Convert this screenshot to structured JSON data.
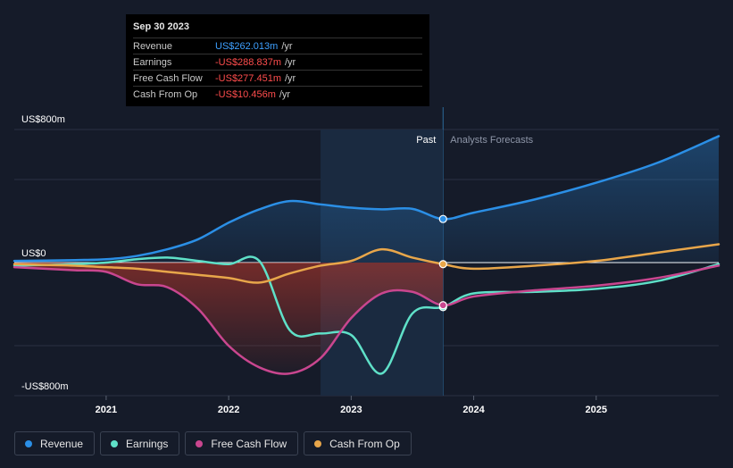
{
  "tooltip": {
    "date": "Sep 30 2023",
    "rows": [
      {
        "label": "Revenue",
        "value": "US$262.013m",
        "unit": "/yr",
        "color": "#3ea0ff"
      },
      {
        "label": "Earnings",
        "value": "-US$288.837m",
        "unit": "/yr",
        "color": "#ff4d4d"
      },
      {
        "label": "Free Cash Flow",
        "value": "-US$277.451m",
        "unit": "/yr",
        "color": "#ff4d4d"
      },
      {
        "label": "Cash From Op",
        "value": "-US$10.456m",
        "unit": "/yr",
        "color": "#ff4d4d"
      }
    ]
  },
  "labels": {
    "past": "Past",
    "forecast": "Analysts Forecasts"
  },
  "chart_data": {
    "type": "line",
    "ylim": [
      -800,
      800
    ],
    "xlim": [
      2020.0,
      2026.0
    ],
    "y_ticks": [
      {
        "value": 800,
        "label": "US$800m"
      },
      {
        "value": 0,
        "label": "US$0"
      },
      {
        "value": -800,
        "label": "-US$800m"
      }
    ],
    "x_ticks": [
      {
        "value": 2021,
        "label": "2021"
      },
      {
        "value": 2022,
        "label": "2022"
      },
      {
        "value": 2023,
        "label": "2023"
      },
      {
        "value": 2024,
        "label": "2024"
      },
      {
        "value": 2025,
        "label": "2025"
      }
    ],
    "past_end": 2023.75,
    "highlight_start": 2022.75,
    "series": [
      {
        "name": "Revenue",
        "color": "#2b8fe6",
        "x": [
          2020.25,
          2020.5,
          2020.75,
          2021.0,
          2021.25,
          2021.5,
          2021.75,
          2022.0,
          2022.25,
          2022.5,
          2022.75,
          2023.0,
          2023.25,
          2023.5,
          2023.75,
          2024.0,
          2024.5,
          2025.0,
          2025.5,
          2026.0
        ],
        "y": [
          10,
          12,
          15,
          20,
          40,
          80,
          140,
          240,
          320,
          370,
          350,
          330,
          320,
          323,
          262,
          300,
          380,
          480,
          600,
          760
        ]
      },
      {
        "name": "Earnings",
        "color": "#5fe0c8",
        "x": [
          2020.25,
          2020.5,
          2020.75,
          2021.0,
          2021.25,
          2021.5,
          2021.75,
          2022.0,
          2022.25,
          2022.5,
          2022.75,
          2023.0,
          2023.25,
          2023.5,
          2023.75,
          2024.0,
          2024.5,
          2025.0,
          2025.5,
          2026.0
        ],
        "y": [
          -20,
          -15,
          -10,
          0,
          20,
          30,
          10,
          -10,
          10,
          -440,
          -460,
          -470,
          -720,
          -330,
          -289,
          -200,
          -190,
          -170,
          -120,
          -10
        ]
      },
      {
        "name": "Free Cash Flow",
        "color": "#c9468f",
        "x": [
          2020.25,
          2020.5,
          2020.75,
          2021.0,
          2021.25,
          2021.5,
          2021.75,
          2022.0,
          2022.25,
          2022.5,
          2022.75,
          2023.0,
          2023.25,
          2023.5,
          2023.75,
          2024.0,
          2024.5,
          2025.0,
          2025.5,
          2026.0
        ],
        "y": [
          -30,
          -40,
          -50,
          -60,
          -140,
          -160,
          -300,
          -540,
          -680,
          -720,
          -620,
          -360,
          -200,
          -190,
          -277,
          -220,
          -180,
          -150,
          -100,
          -20
        ]
      },
      {
        "name": "Cash From Op",
        "color": "#e8a64a",
        "x": [
          2020.25,
          2020.5,
          2020.75,
          2021.0,
          2021.25,
          2021.5,
          2021.75,
          2022.0,
          2022.25,
          2022.5,
          2022.75,
          2023.0,
          2023.25,
          2023.5,
          2023.75,
          2024.0,
          2024.5,
          2025.0,
          2025.5,
          2026.0
        ],
        "y": [
          -10,
          -15,
          -20,
          -30,
          -40,
          -60,
          -80,
          -100,
          -130,
          -70,
          -20,
          10,
          80,
          30,
          -10,
          -40,
          -20,
          10,
          60,
          110
        ]
      }
    ]
  },
  "legend": [
    {
      "label": "Revenue",
      "color": "#2b8fe6"
    },
    {
      "label": "Earnings",
      "color": "#5fe0c8"
    },
    {
      "label": "Free Cash Flow",
      "color": "#c9468f"
    },
    {
      "label": "Cash From Op",
      "color": "#e8a64a"
    }
  ]
}
